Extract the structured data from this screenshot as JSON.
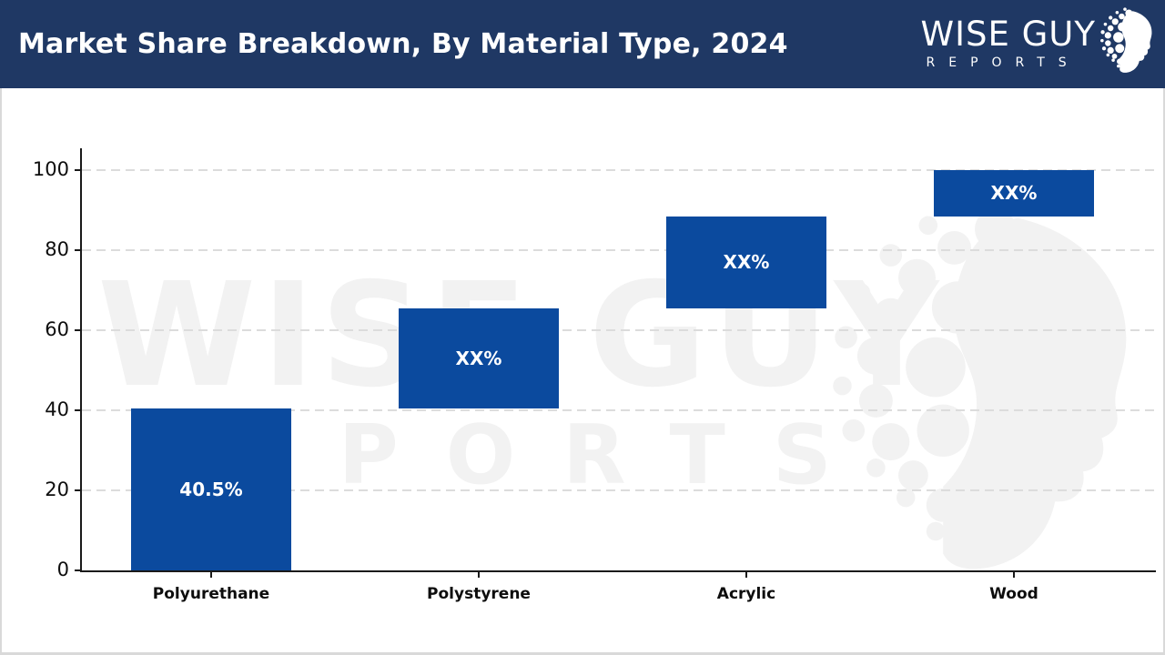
{
  "header": {
    "title": "Market Share Breakdown, By Material Type, 2024",
    "logo": {
      "line1": "WISE GUY",
      "line2": "REPORTS"
    }
  },
  "watermark": {
    "line1": "WISE GUY",
    "line2": "REPORTS"
  },
  "chart_data": {
    "type": "bar",
    "subtype": "waterfall",
    "title": "Market Share Breakdown, By Material Type, 2024",
    "categories": [
      "Polyurethane",
      "Polystyrene",
      "Acrylic",
      "Wood"
    ],
    "bars": [
      {
        "category": "Polyurethane",
        "start": 0,
        "end": 40.5,
        "label": "40.5%"
      },
      {
        "category": "Polystyrene",
        "start": 40.5,
        "end": 65.5,
        "label": "XX%"
      },
      {
        "category": "Acrylic",
        "start": 65.5,
        "end": 88.5,
        "label": "XX%"
      },
      {
        "category": "Wood",
        "start": 88.5,
        "end": 100,
        "label": "XX%"
      }
    ],
    "xlabel": "",
    "ylabel": "",
    "ylim": [
      0,
      100
    ],
    "yticks": [
      0,
      20,
      40,
      60,
      80,
      100
    ],
    "grid": true,
    "grid_style": "dashed",
    "legend": "none",
    "bar_color": "#0b4a9e",
    "bar_label_color": "#ffffff",
    "header_color": "#1f3864",
    "grid_color": "#dcdcdc",
    "axis_color": "#1a1a1a"
  }
}
